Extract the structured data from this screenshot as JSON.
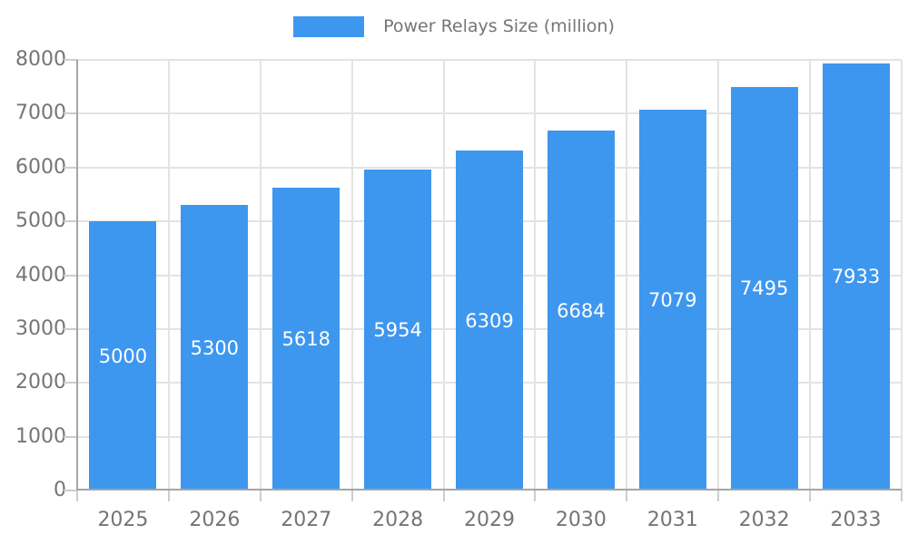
{
  "colors": {
    "background": "#FFFFFF",
    "bar": "#3E97EE",
    "bar_label_text": "#FFFFFF",
    "grid": "#E3E3E3",
    "tick": "#CDCDCD",
    "axis": "#A5A5A5",
    "text": "#757575"
  },
  "legend": {
    "position": "top-center",
    "items": [
      {
        "label": "Power Relays Size (million)",
        "swatch_color": "#3E97EE"
      }
    ]
  },
  "chart_data": {
    "type": "bar",
    "title": "",
    "categories": [
      "2025",
      "2026",
      "2027",
      "2028",
      "2029",
      "2030",
      "2031",
      "2032",
      "2033"
    ],
    "series": [
      {
        "name": "Power Relays Size (million)",
        "color": "#3E97EE",
        "values": [
          5000,
          5300,
          5618,
          5954,
          6309,
          6684,
          7079,
          7495,
          7933
        ]
      }
    ],
    "xlabel": "",
    "ylabel": "",
    "ylim": [
      0,
      8000
    ],
    "yticks": [
      0,
      1000,
      2000,
      3000,
      4000,
      5000,
      6000,
      7000,
      8000
    ],
    "grid": true,
    "vertical_grid": true,
    "legend_position": "top-center",
    "value_labels": "inside-center-white"
  }
}
